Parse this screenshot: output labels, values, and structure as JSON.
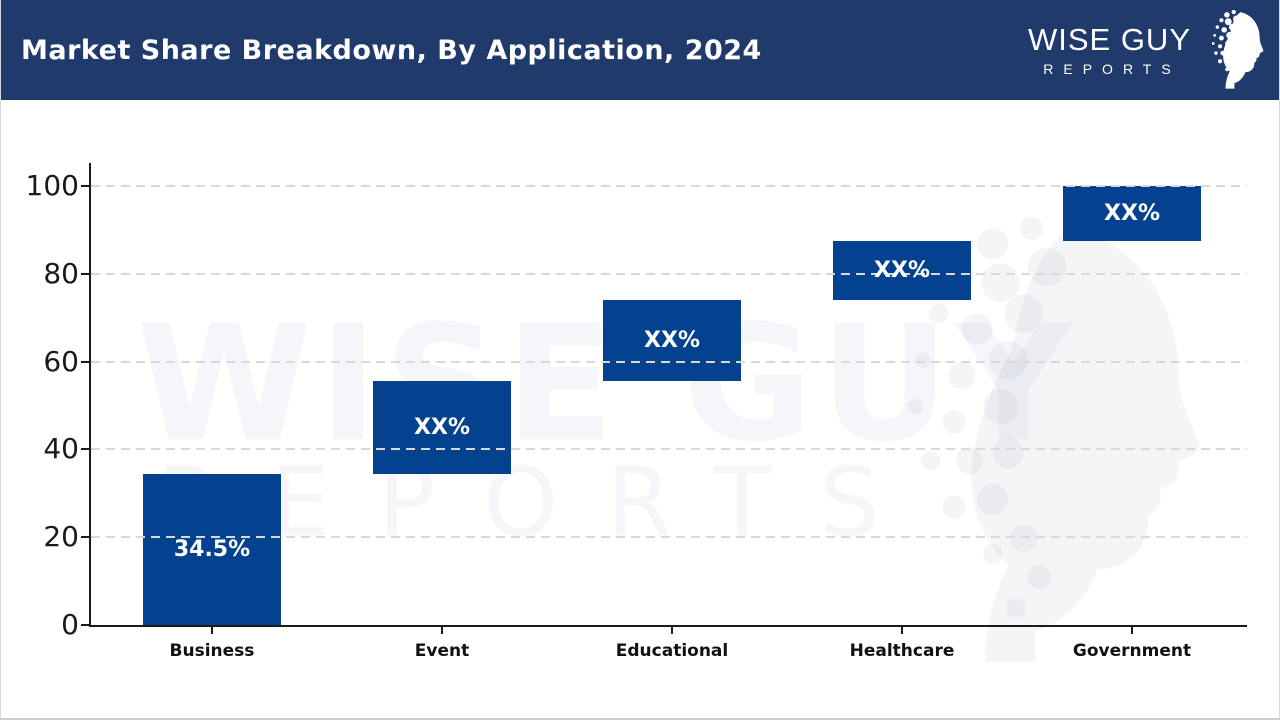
{
  "header": {
    "title": "Market Share Breakdown, By Application, 2024",
    "logo": {
      "line1": "WISE GUY",
      "line2": "REPORTS"
    }
  },
  "watermark": {
    "line1": "WISE GUY",
    "line2": "REPORTS"
  },
  "colors": {
    "header_bg": "#213a6c",
    "bar": "#04418f",
    "grid": "#d9d9d9",
    "axis": "#1a1a1a",
    "bar_label": "#ffffff"
  },
  "chart_data": {
    "type": "bar",
    "subtype": "waterfall",
    "title": "Market Share Breakdown, By Application, 2024",
    "categories": [
      "Business",
      "Event",
      "Educational",
      "Healthcare",
      "Government"
    ],
    "segments": [
      {
        "category": "Business",
        "start": 0,
        "end": 34.5,
        "label": "34.5%"
      },
      {
        "category": "Event",
        "start": 34.5,
        "end": 55.5,
        "label": "XX%"
      },
      {
        "category": "Educational",
        "start": 55.5,
        "end": 74,
        "label": "XX%"
      },
      {
        "category": "Healthcare",
        "start": 74,
        "end": 87.5,
        "label": "XX%"
      },
      {
        "category": "Government",
        "start": 87.5,
        "end": 100,
        "label": "XX%"
      }
    ],
    "ylim": [
      0,
      105
    ],
    "yticks": [
      0,
      20,
      40,
      60,
      80,
      100
    ],
    "xlabel": "",
    "ylabel": "",
    "grid": "horizontal-dashed",
    "legend": "none"
  }
}
